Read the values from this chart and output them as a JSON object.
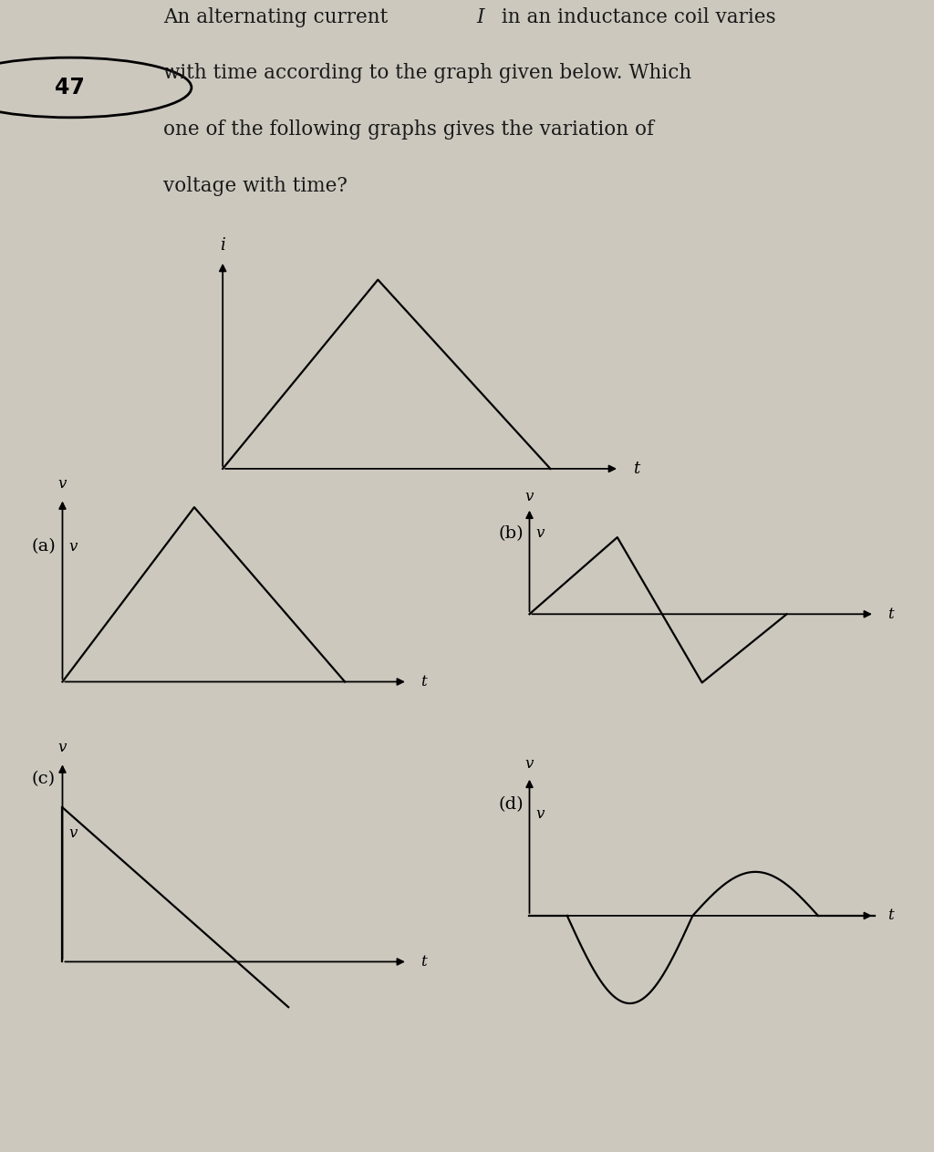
{
  "bg_color": "#ccc8be",
  "text_color": "#1a1a1a",
  "question_number": "47",
  "main_graph": {
    "label_y": "i",
    "label_x": "t"
  },
  "sub_labels": [
    "(a)",
    "(b)",
    "(c)",
    "(d)"
  ],
  "axis_label_y": "v",
  "axis_label_x": "t"
}
